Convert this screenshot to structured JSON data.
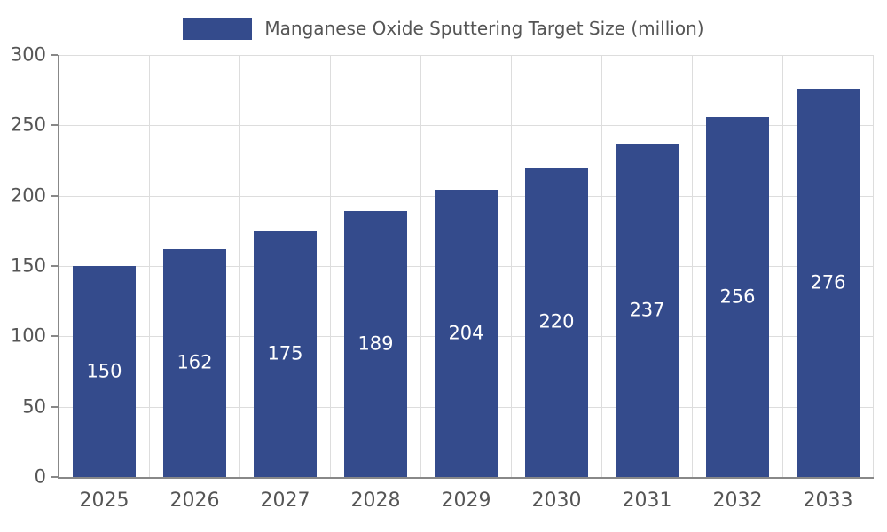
{
  "chart_data": {
    "type": "bar",
    "title": "Manganese Oxide Sputtering Target Size (million)",
    "categories": [
      "2025",
      "2026",
      "2027",
      "2028",
      "2029",
      "2030",
      "2031",
      "2032",
      "2033"
    ],
    "values": [
      150,
      162,
      175,
      189,
      204,
      220,
      237,
      256,
      276
    ],
    "xlabel": "",
    "ylabel": "",
    "ylim": [
      0,
      300
    ],
    "yticks": [
      0,
      50,
      100,
      150,
      200,
      250,
      300
    ],
    "grid": true,
    "legend_position": "top",
    "bar_color": "#344b8c",
    "value_label_color": "#ffffff",
    "axis_color": "#888888",
    "grid_color": "#dddddd",
    "text_color": "#555555"
  }
}
